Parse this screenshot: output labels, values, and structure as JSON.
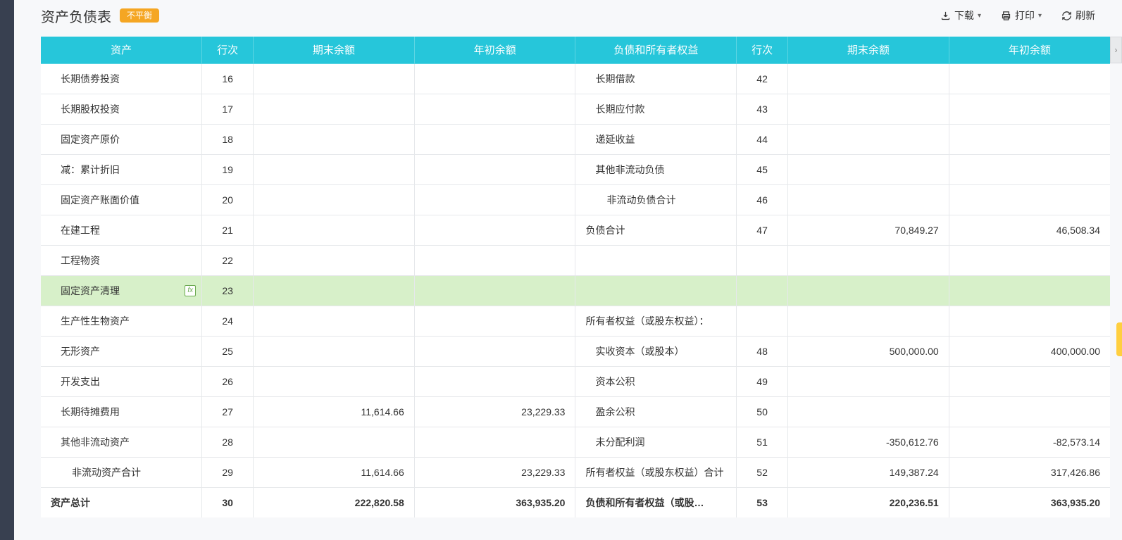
{
  "header": {
    "title": "资产负债表",
    "badge": "不平衡",
    "actions": {
      "download": "下载",
      "print": "打印",
      "refresh": "刷新"
    }
  },
  "table": {
    "columns": {
      "asset": "资产",
      "line": "行次",
      "end_balance": "期末余额",
      "begin_balance": "年初余额",
      "liability": "负债和所有者权益",
      "line2": "行次",
      "end_balance2": "期末余额",
      "begin_balance2": "年初余额"
    },
    "rows": [
      {
        "a": "长期债券投资",
        "ai": 1,
        "al": "16",
        "ae": "",
        "ab": "",
        "l": "长期借款",
        "li": 1,
        "ll": "42",
        "le": "",
        "lb": ""
      },
      {
        "a": "长期股权投资",
        "ai": 1,
        "al": "17",
        "ae": "",
        "ab": "",
        "l": "长期应付款",
        "li": 1,
        "ll": "43",
        "le": "",
        "lb": ""
      },
      {
        "a": "固定资产原价",
        "ai": 1,
        "al": "18",
        "ae": "",
        "ab": "",
        "l": "递延收益",
        "li": 1,
        "ll": "44",
        "le": "",
        "lb": ""
      },
      {
        "a": "减：累计折旧",
        "ai": 1,
        "al": "19",
        "ae": "",
        "ab": "",
        "l": "其他非流动负债",
        "li": 1,
        "ll": "45",
        "le": "",
        "lb": ""
      },
      {
        "a": "固定资产账面价值",
        "ai": 1,
        "al": "20",
        "ae": "",
        "ab": "",
        "l": "非流动负债合计",
        "li": 2,
        "ll": "46",
        "le": "",
        "lb": ""
      },
      {
        "a": "在建工程",
        "ai": 1,
        "al": "21",
        "ae": "",
        "ab": "",
        "l": "负债合计",
        "li": 0,
        "ll": "47",
        "le": "70,849.27",
        "lb": "46,508.34"
      },
      {
        "a": "工程物资",
        "ai": 1,
        "al": "22",
        "ae": "",
        "ab": "",
        "l": "",
        "li": 0,
        "ll": "",
        "le": "",
        "lb": ""
      },
      {
        "a": "固定资产清理",
        "ai": 1,
        "al": "23",
        "ae": "",
        "ab": "",
        "l": "",
        "li": 0,
        "ll": "",
        "le": "",
        "lb": "",
        "hl": true,
        "fx": true
      },
      {
        "a": "生产性生物资产",
        "ai": 1,
        "al": "24",
        "ae": "",
        "ab": "",
        "l": "所有者权益（或股东权益）：",
        "li": 0,
        "ll": "",
        "le": "",
        "lb": ""
      },
      {
        "a": "无形资产",
        "ai": 1,
        "al": "25",
        "ae": "",
        "ab": "",
        "l": "实收资本（或股本）",
        "li": 1,
        "ll": "48",
        "le": "500,000.00",
        "lb": "400,000.00"
      },
      {
        "a": "开发支出",
        "ai": 1,
        "al": "26",
        "ae": "",
        "ab": "",
        "l": "资本公积",
        "li": 1,
        "ll": "49",
        "le": "",
        "lb": ""
      },
      {
        "a": "长期待摊费用",
        "ai": 1,
        "al": "27",
        "ae": "11,614.66",
        "ab": "23,229.33",
        "l": "盈余公积",
        "li": 1,
        "ll": "50",
        "le": "",
        "lb": ""
      },
      {
        "a": "其他非流动资产",
        "ai": 1,
        "al": "28",
        "ae": "",
        "ab": "",
        "l": "未分配利润",
        "li": 1,
        "ll": "51",
        "le": "-350,612.76",
        "le_neg": true,
        "lb": "-82,573.14",
        "lb_neg": true
      },
      {
        "a": "非流动资产合计",
        "ai": 2,
        "al": "29",
        "ae": "11,614.66",
        "ab": "23,229.33",
        "l": "所有者权益（或股东权益）合计",
        "li": 0,
        "ll": "52",
        "le": "149,387.24",
        "lb": "317,426.86"
      },
      {
        "a": "资产总计",
        "ai": 0,
        "al": "30",
        "ae": "222,820.58",
        "ab": "363,935.20",
        "l": "负债和所有者权益（或股…",
        "li": 0,
        "ll": "53",
        "le": "220,236.51",
        "lb": "363,935.20",
        "total": true
      }
    ]
  },
  "colors": {
    "header_bg": "#26c6da",
    "highlight_bg": "#d7f0c9",
    "badge_bg": "#f5a623",
    "border": "#e6e8eb",
    "negative": "#e74c3c",
    "side_gutter": "#384050"
  }
}
